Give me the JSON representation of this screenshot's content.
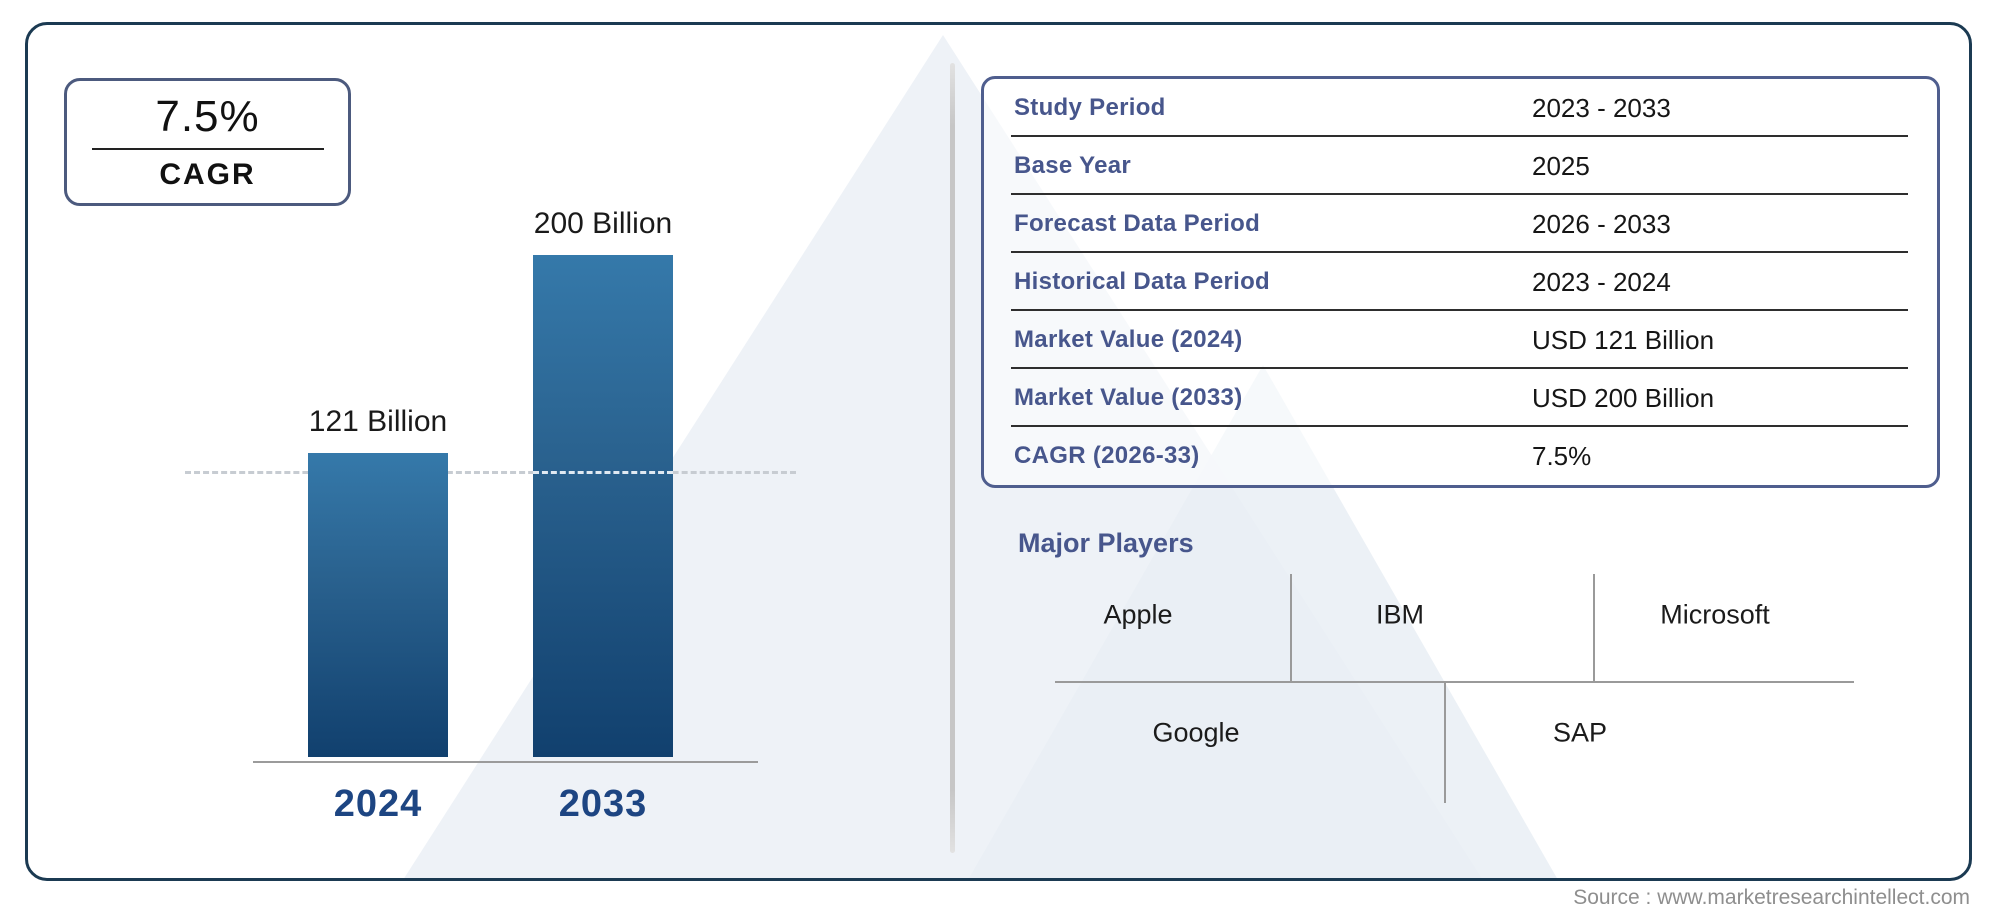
{
  "page": {
    "source_text": "Source : www.marketresearchintellect.com"
  },
  "colors": {
    "outer_border": "#1b3a52",
    "table_border": "#4f5e8e",
    "label_blue": "#47568c",
    "bar_gradient_top": "#3579aa",
    "bar_gradient_bottom": "#11406e",
    "year_label": "#1d4582",
    "dashed_reference": "#c7ccd2",
    "watermark": "#eef2f7",
    "source_gray": "#8e8e8e"
  },
  "cagr_badge": {
    "value": "7.5%",
    "label": "CAGR"
  },
  "chart_data": {
    "type": "bar",
    "categories": [
      "2024",
      "2033"
    ],
    "values": [
      121,
      200
    ],
    "bar_labels": [
      "121 Billion",
      "200 Billion"
    ],
    "unit": "USD Billion",
    "ylim": [
      0,
      200
    ],
    "reference_line_value": 121,
    "reference_line_style": "dashed",
    "grid": false,
    "legend": false,
    "title": "",
    "xlabel": "",
    "ylabel": ""
  },
  "info_table": {
    "rows": [
      {
        "label": "Study Period",
        "value": "2023 - 2033"
      },
      {
        "label": "Base Year",
        "value": "2025"
      },
      {
        "label": "Forecast Data Period",
        "value": "2026 - 2033"
      },
      {
        "label": "Historical Data Period",
        "value": "2023 - 2024"
      },
      {
        "label": "Market Value (2024)",
        "value": "USD 121 Billion"
      },
      {
        "label": "Market Value (2033)",
        "value": "USD 200 Billion"
      },
      {
        "label": "CAGR (2026-33)",
        "value": "7.5%"
      }
    ]
  },
  "major_players": {
    "title": "Major Players",
    "row1": [
      "Apple",
      "IBM",
      "Microsoft"
    ],
    "row2": [
      "Google",
      "SAP"
    ]
  }
}
